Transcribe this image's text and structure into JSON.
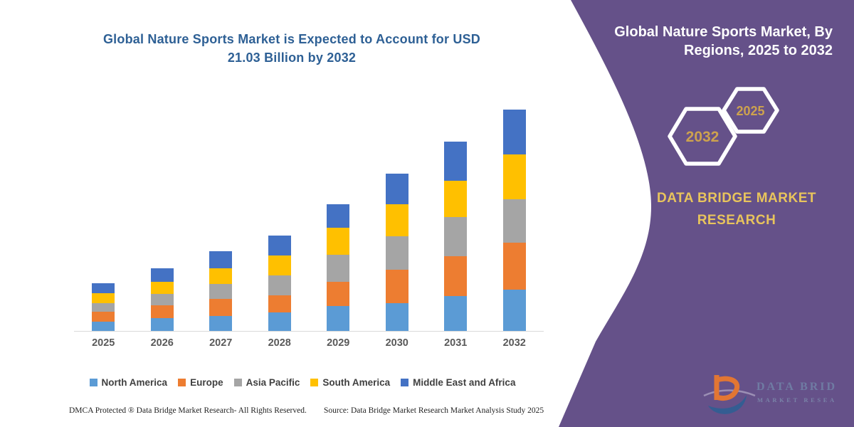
{
  "main": {
    "title_lines": [
      "Global Nature Sports Market is Expected to Account for USD",
      "21.03 Billion by 2032"
    ],
    "footer_left": "DMCA Protected ® Data Bridge Market Research- All Rights Reserved.",
    "footer_right": "Source: Data Bridge Market Research Market Analysis Study 2025"
  },
  "chart_data": {
    "type": "bar",
    "stacked": true,
    "title": "Global Nature Sports Market is Expected to Account for USD 21.03 Billion by 2032",
    "unit": "USD Billion",
    "categories": [
      "2025",
      "2026",
      "2027",
      "2028",
      "2029",
      "2030",
      "2031",
      "2032"
    ],
    "series": [
      {
        "name": "North America",
        "color": "#5B9BD5",
        "values": [
          0.88,
          1.2,
          1.43,
          1.77,
          2.38,
          2.67,
          3.31,
          3.92
        ]
      },
      {
        "name": "Europe",
        "color": "#ED7D31",
        "values": [
          0.92,
          1.25,
          1.59,
          1.63,
          2.31,
          3.17,
          3.79,
          4.47
        ]
      },
      {
        "name": "Asia Pacific",
        "color": "#A5A5A5",
        "values": [
          0.87,
          1.07,
          1.45,
          1.88,
          2.56,
          3.13,
          3.74,
          4.15
        ]
      },
      {
        "name": "South America",
        "color": "#FFC000",
        "values": [
          0.91,
          1.18,
          1.5,
          1.9,
          2.54,
          3.06,
          3.47,
          4.24
        ]
      },
      {
        "name": "Middle East and Africa",
        "color": "#4472C4",
        "values": [
          0.95,
          1.27,
          1.63,
          1.88,
          2.22,
          2.88,
          3.67,
          4.25
        ]
      }
    ],
    "totals_by_year": [
      4.53,
      5.97,
      7.6,
      9.06,
      12.01,
      14.91,
      17.98,
      21.03
    ],
    "ylim": [
      0,
      21.03
    ],
    "grid": false,
    "axis_labels_visible": {
      "x": true,
      "y": false
    },
    "legend_position": "bottom",
    "annotation": "USD 21.03 Billion by 2032"
  },
  "panel": {
    "title_lines": [
      "Global Nature Sports Market, By",
      "Regions, 2025 to 2032"
    ],
    "hexagons": [
      {
        "label": "2032"
      },
      {
        "label": "2025"
      }
    ],
    "brand_text": "DATA BRIDGE MARKET RESEARCH",
    "logo": {
      "line1": "DATA BRIDGE",
      "line2": "MARKET RESEARCH"
    },
    "colors": {
      "background": "#655189",
      "hex_year_gold": "#CDA24E",
      "brand_gold": "#E8C45C",
      "title_blue": "#2E6095",
      "logo_orange": "#F07B2A",
      "logo_blue": "#2F5F93"
    }
  }
}
